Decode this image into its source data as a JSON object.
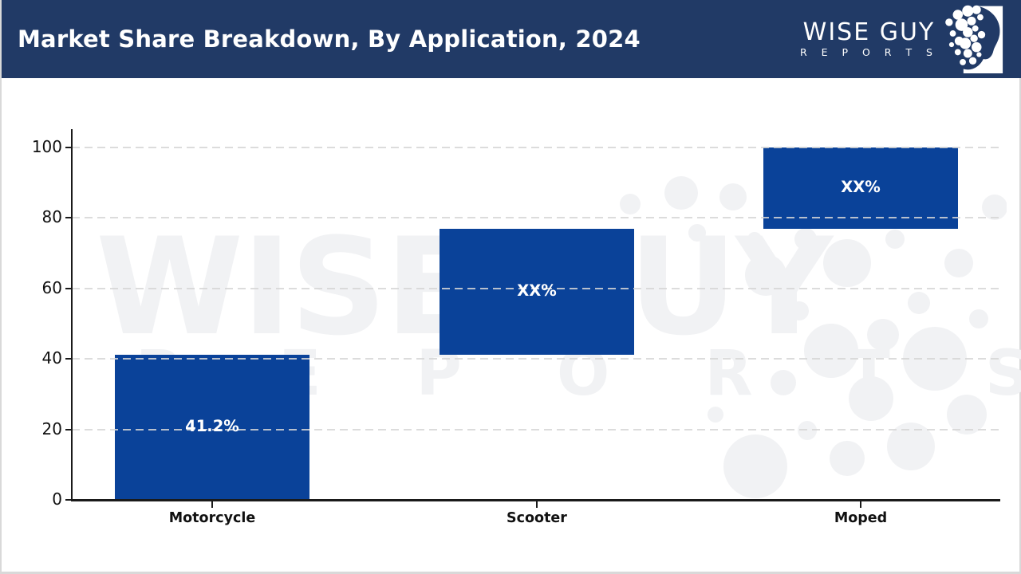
{
  "header": {
    "title": "Market Share Breakdown, By Application, 2024",
    "logo_line1": "WISE GUY",
    "logo_line2": "R E P O R T S"
  },
  "watermark": {
    "line1": "WISE GUY",
    "line2": "R E P O R T S"
  },
  "colors": {
    "header_bg": "#213a66",
    "bar": "#0a4299",
    "grid": "#d9d9d9",
    "axis": "#1a1a1a",
    "bar_label": "#ffffff",
    "watermark": "#f1f2f4"
  },
  "chart_data": {
    "type": "bar",
    "subtype": "waterfall",
    "title": "Market Share Breakdown, By Application, 2024",
    "categories": [
      "Motorcycle",
      "Scooter",
      "Moped"
    ],
    "segments": [
      {
        "category": "Motorcycle",
        "start": 0,
        "end": 41.2,
        "label": "41.2%"
      },
      {
        "category": "Scooter",
        "start": 41.2,
        "end": 77,
        "label": "XX%"
      },
      {
        "category": "Moped",
        "start": 77,
        "end": 100,
        "label": "XX%"
      }
    ],
    "yticks": [
      0,
      20,
      40,
      60,
      80,
      100
    ],
    "ylim": [
      0,
      105
    ],
    "xlabel": "",
    "ylabel": "",
    "grid": "dashed-horizontal",
    "legend": "none",
    "bar_color": "#0a4299"
  },
  "icons": {
    "logo_head": "dotted-head-profile",
    "watermark_head": "dotted-head-profile"
  }
}
